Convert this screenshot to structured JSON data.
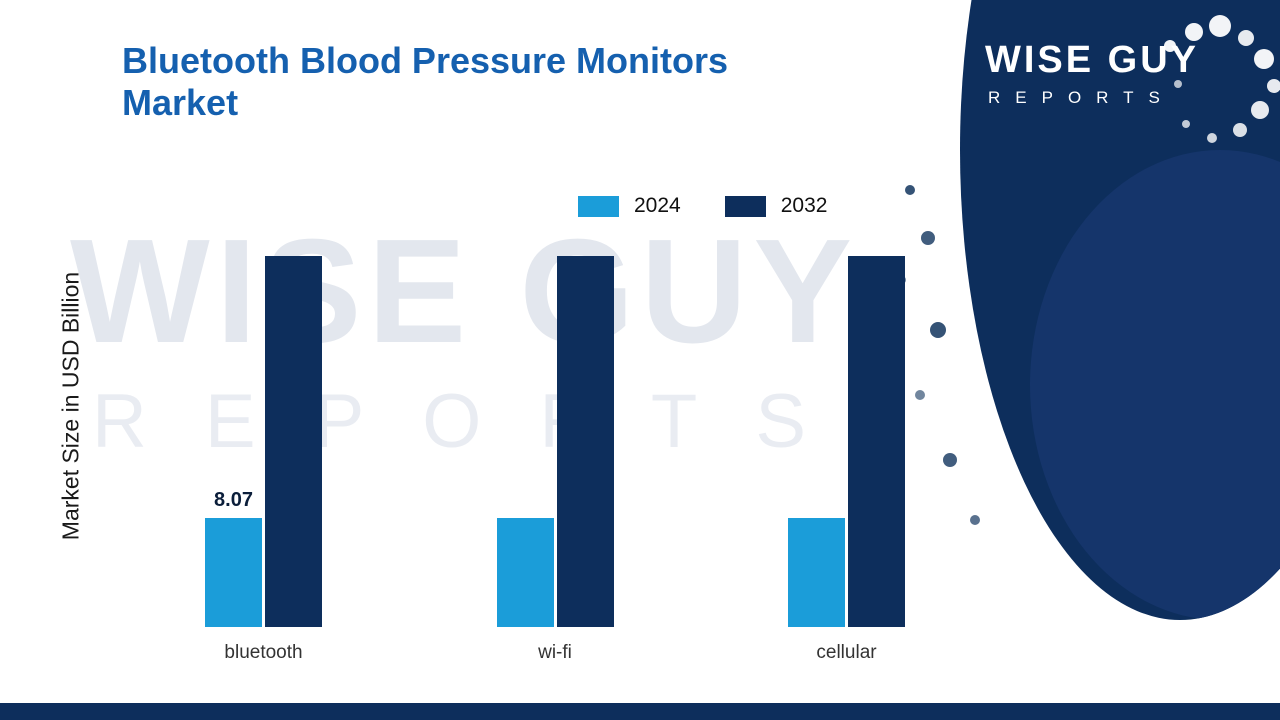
{
  "title": "Bluetooth Blood Pressure Monitors Market",
  "logo": {
    "line1": "WISE GUY",
    "line2": "REPORTS"
  },
  "watermark": {
    "line1": "WISE GUY",
    "line2": "REPORTS"
  },
  "chart_data": {
    "type": "bar",
    "categories": [
      "bluetooth",
      "wi-fi",
      "cellular"
    ],
    "series": [
      {
        "name": "2024",
        "color": "#1B9DD9",
        "values": [
          8.07,
          8.07,
          8.07
        ]
      },
      {
        "name": "2032",
        "color": "#0D2E5C",
        "values": [
          27.5,
          27.5,
          27.5
        ]
      }
    ],
    "data_labels": [
      {
        "series": "2024",
        "category": "bluetooth",
        "text": "8.07"
      }
    ],
    "ylabel": "Market Size in USD Billion",
    "xlabel": "",
    "ylim": [
      0,
      27.5
    ],
    "legend_position": "top",
    "grid": false
  },
  "colors": {
    "title_blue": "#1560AF",
    "series_2024": "#1B9DD9",
    "series_2032": "#0D2E5C",
    "footer": "#0D2E5C",
    "watermark": "#E3E7EE"
  }
}
